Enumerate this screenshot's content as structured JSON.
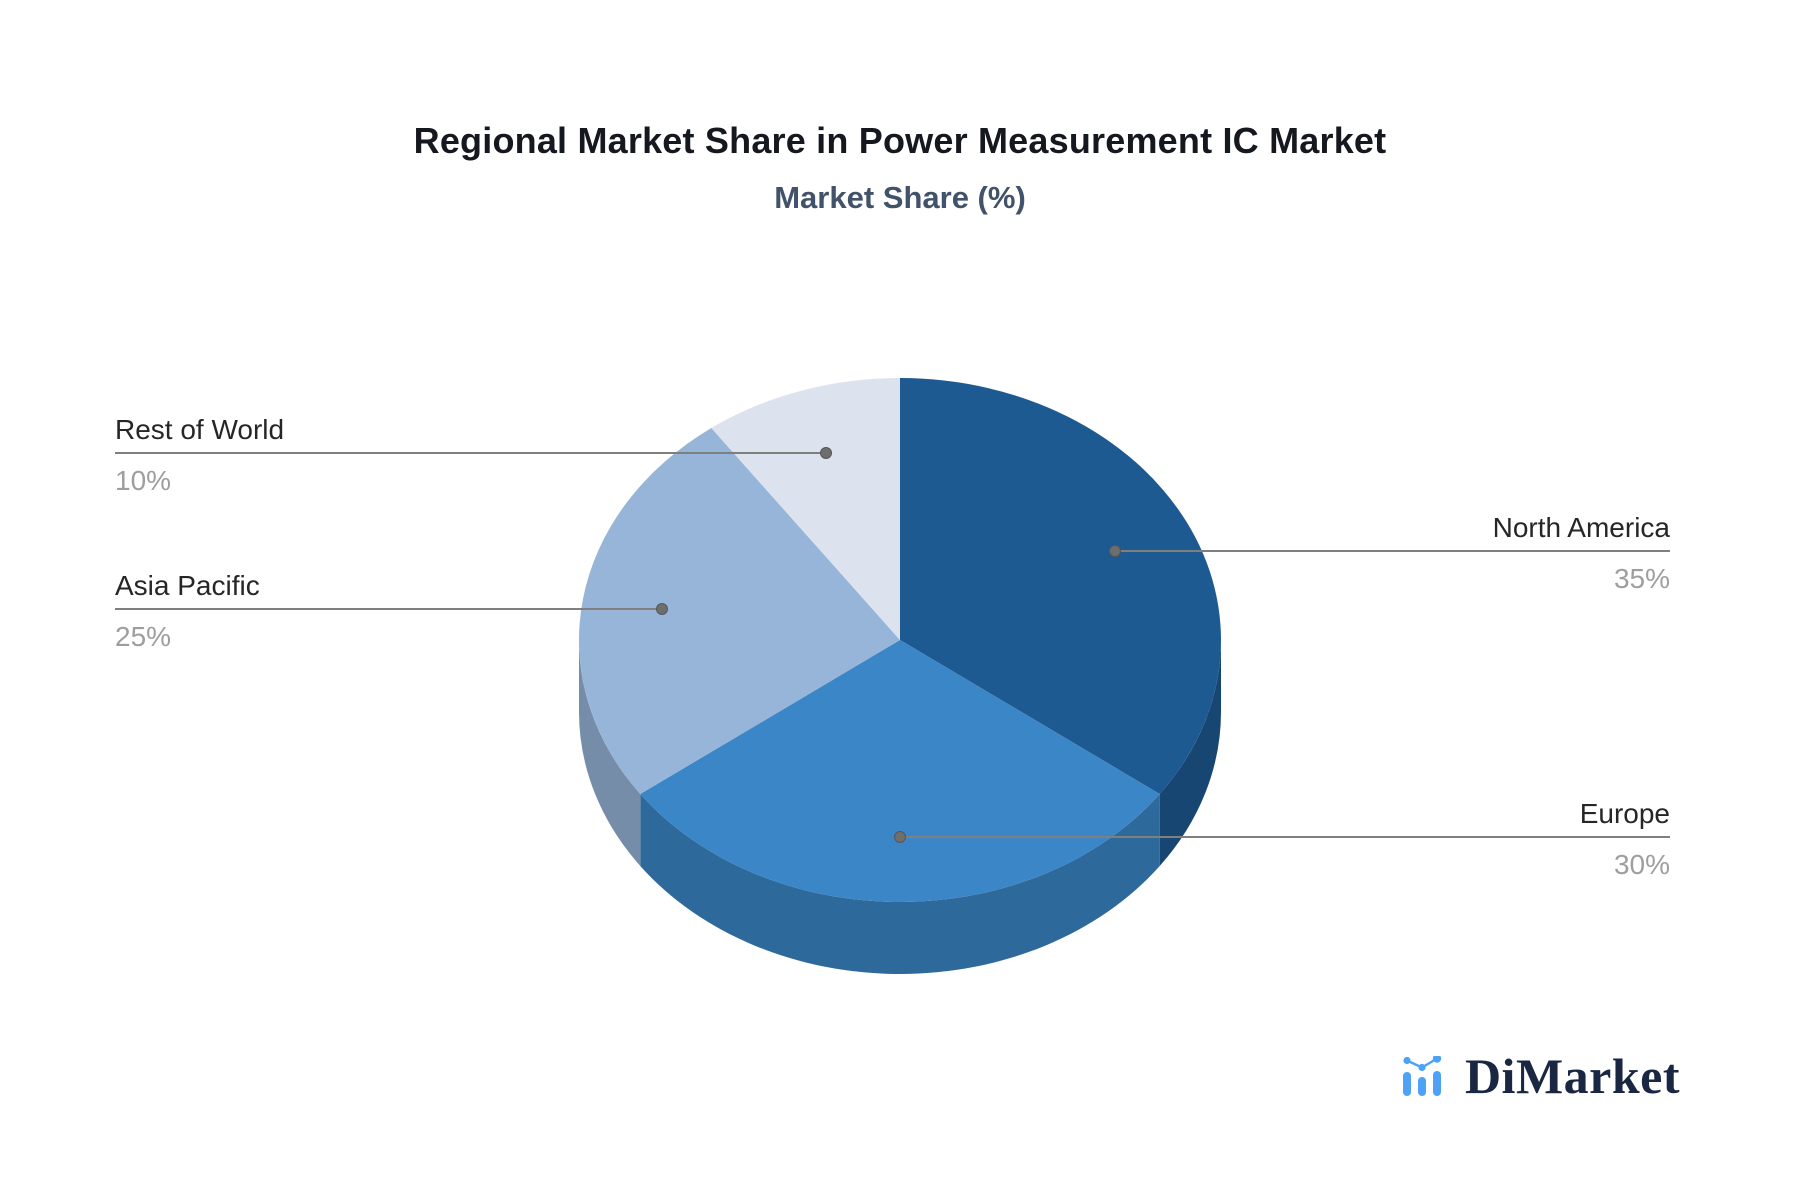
{
  "chart_data": {
    "type": "pie",
    "variant": "3d-pie",
    "title": "Regional Market Share in Power Measurement IC Market",
    "subtitle": "Market Share (%)",
    "unit": "%",
    "direction": "clockwise",
    "start_angle_deg": -90,
    "categories": [
      "North America",
      "Europe",
      "Asia Pacific",
      "Rest of World"
    ],
    "values": [
      35,
      30,
      25,
      10
    ],
    "colors": [
      "#1E5A92",
      "#3B86C7",
      "#96B5D8",
      "#DCE3EE"
    ],
    "labels": [
      {
        "name": "North America",
        "pct": "35%",
        "side": "right"
      },
      {
        "name": "Europe",
        "pct": "30%",
        "side": "right"
      },
      {
        "name": "Asia Pacific",
        "pct": "25%",
        "side": "left"
      },
      {
        "name": "Rest of World",
        "pct": "10%",
        "side": "left"
      }
    ],
    "legend_position": "none",
    "grid": false
  },
  "branding": {
    "logo_text": "DiMarket",
    "logo_icon": "bar-line-chart-icon",
    "logo_icon_color": "#4DA2F5",
    "logo_text_color": "#1A2742"
  },
  "style": {
    "background": "#FFFFFF",
    "title_color": "#15181E",
    "subtitle_color": "#42526B",
    "label_name_color": "#262626",
    "label_pct_color": "#9E9E9E",
    "leader_line_color": "#7F7F7F"
  }
}
